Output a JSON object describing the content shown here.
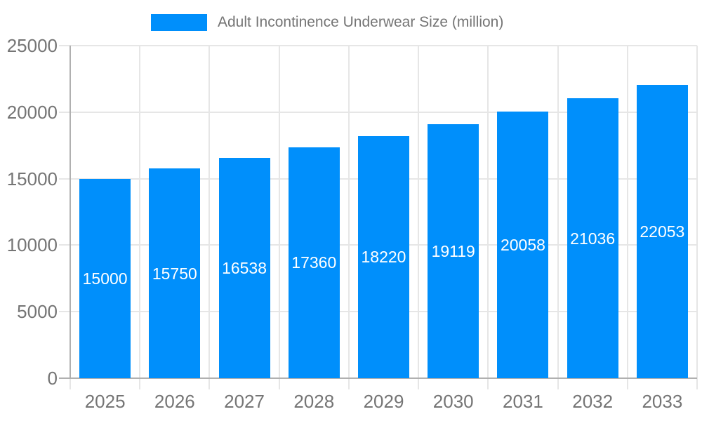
{
  "legend": {
    "label": "Adult Incontinence Underwear Size (million)"
  },
  "colors": {
    "bar": "#008FFB",
    "grid": "#e6e6e6",
    "axis": "#b0b0b0",
    "tick_text": "#757575",
    "value_text": "#ffffff",
    "background": "#ffffff"
  },
  "chart_data": {
    "type": "bar",
    "title": "Adult Incontinence Underwear Size (million)",
    "categories": [
      "2025",
      "2026",
      "2027",
      "2028",
      "2029",
      "2030",
      "2031",
      "2032",
      "2033"
    ],
    "series": [
      {
        "name": "Adult Incontinence Underwear Size (million)",
        "values": [
          15000,
          15750,
          16538,
          17360,
          18220,
          19119,
          20058,
          21036,
          22053
        ]
      }
    ],
    "value_labels": [
      15000,
      15750,
      16538,
      17360,
      18220,
      19119,
      20058,
      21036,
      22053
    ],
    "xlabel": "",
    "ylabel": "",
    "ylim": [
      0,
      25000
    ],
    "yticks": [
      0,
      5000,
      10000,
      15000,
      20000,
      25000
    ],
    "grid": "both",
    "legend_position": "top-center",
    "value_label_position": "inside-middle"
  }
}
